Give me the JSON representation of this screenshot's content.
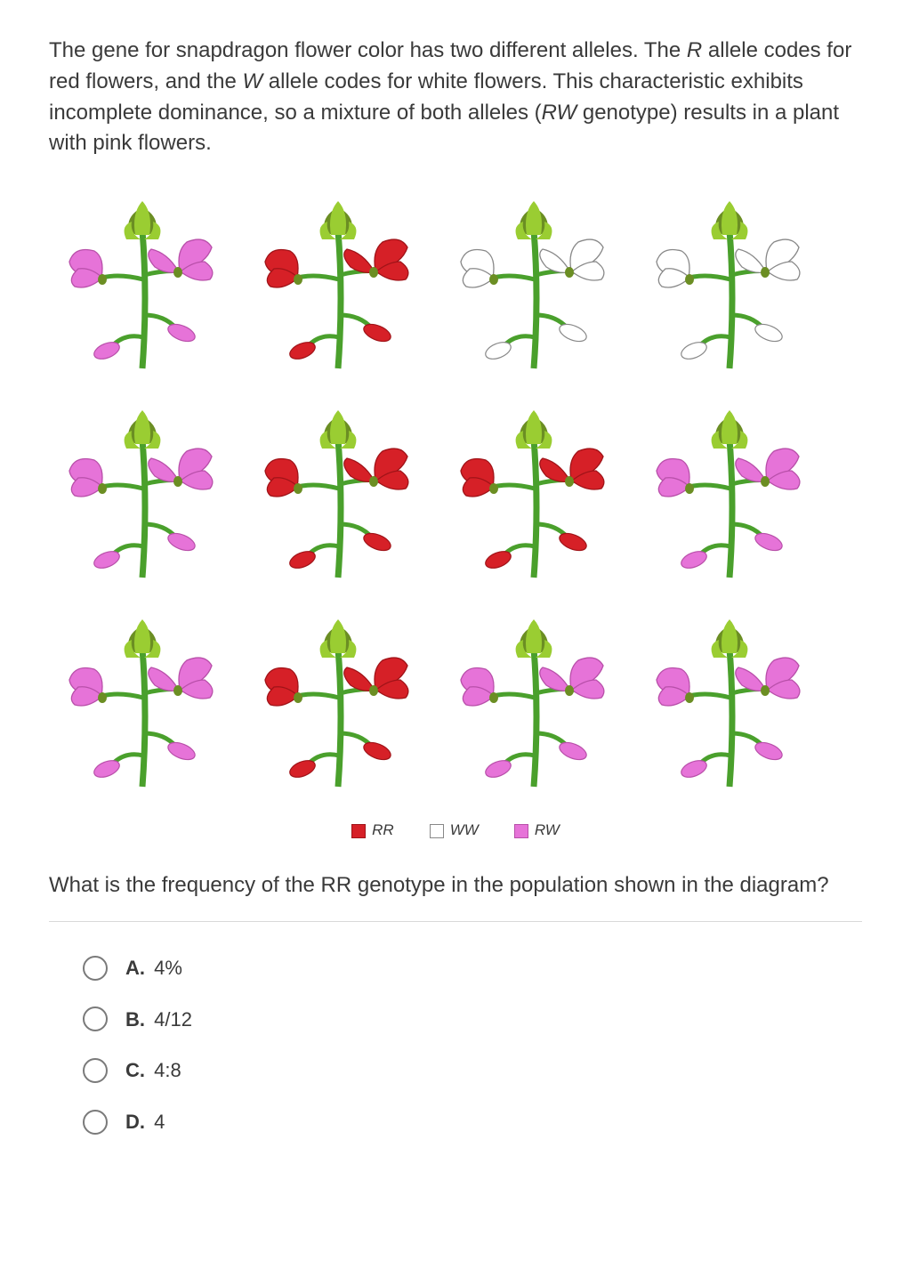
{
  "question": {
    "p1_pre": "The gene for snapdragon flower color has two different alleles. The ",
    "r": "R",
    "p1_mid1": " allele codes for red flowers, and the ",
    "w": "W",
    "p1_mid2": " allele codes for white flowers. This characteristic exhibits incomplete dominance, so a mixture of both alleles (",
    "rw": "RW",
    "p1_end": " genotype) results in a plant with pink flowers."
  },
  "colors": {
    "stem": "#4aa02c",
    "stem_dark": "#3b8222",
    "leaf_light": "#9acd32",
    "leaf_dark": "#6b8e23",
    "red_fill": "#d62027",
    "red_stroke": "#a01318",
    "pink_fill": "#e673d8",
    "pink_stroke": "#b84fa9",
    "white_fill": "#ffffff",
    "white_stroke": "#888888"
  },
  "grid": [
    [
      "pink",
      "red",
      "white",
      "white"
    ],
    [
      "pink",
      "red",
      "red",
      "pink"
    ],
    [
      "pink",
      "red",
      "pink",
      "pink"
    ]
  ],
  "legend": {
    "items": [
      {
        "label": "RR",
        "color": "#d62027",
        "stroke": "#a01318"
      },
      {
        "label": "WW",
        "color": "#ffffff",
        "stroke": "#888888"
      },
      {
        "label": "RW",
        "color": "#e673d8",
        "stroke": "#b84fa9"
      }
    ]
  },
  "followup": {
    "pre": "What is the frequency of the ",
    "rr": "RR",
    "post": " genotype in the population shown in the diagram?"
  },
  "options": [
    {
      "letter": "A.",
      "text": "4%"
    },
    {
      "letter": "B.",
      "text": "4/12"
    },
    {
      "letter": "C.",
      "text": "4:8"
    },
    {
      "letter": "D.",
      "text": "4"
    }
  ]
}
